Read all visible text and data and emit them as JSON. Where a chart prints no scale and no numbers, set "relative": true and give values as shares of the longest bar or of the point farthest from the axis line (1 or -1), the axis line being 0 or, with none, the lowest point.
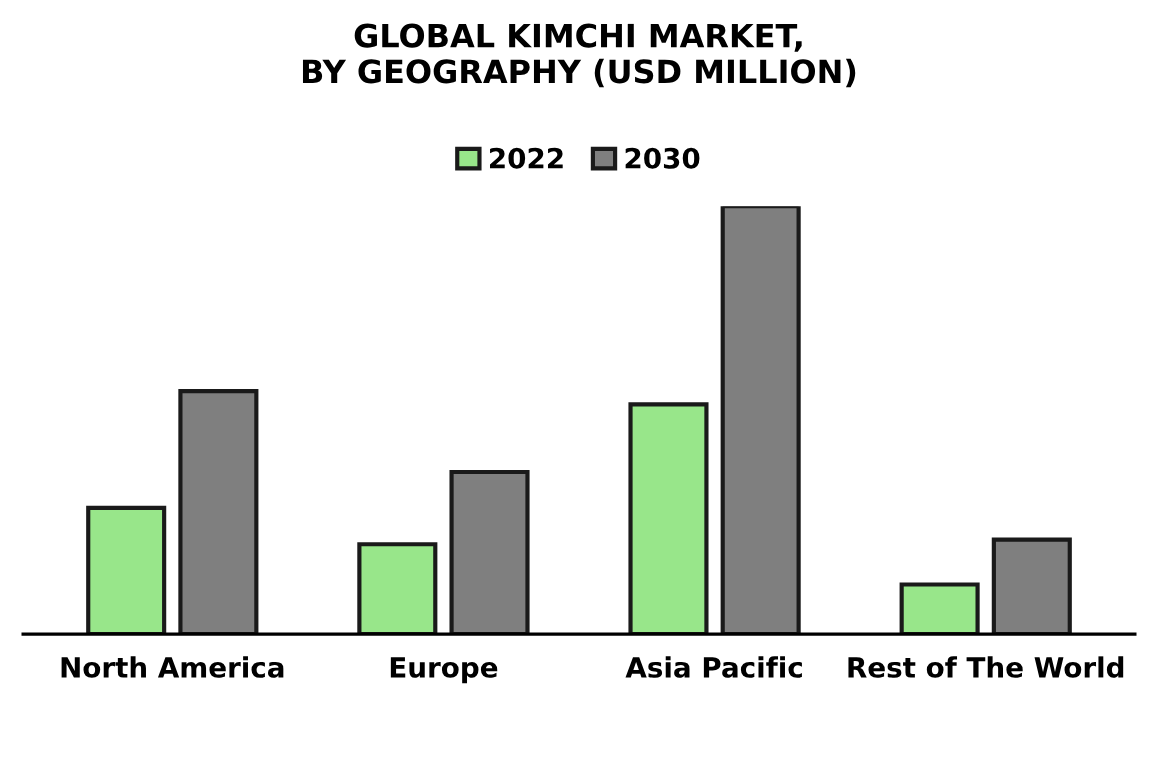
{
  "chart_data": {
    "type": "bar",
    "title": "GLOBAL KIMCHI MARKET,\nBY GEOGRAPHY (USD MILLION)",
    "categories": [
      "North America",
      "Europe",
      "Asia Pacific",
      "Rest of The World"
    ],
    "series": [
      {
        "name": "2022",
        "color": "#98e68a",
        "values": [
          0.295,
          0.21,
          0.537,
          0.116
        ]
      },
      {
        "name": "2030",
        "color": "#7f7f7f",
        "values": [
          0.568,
          0.379,
          1,
          0.221
        ]
      }
    ],
    "relative": true,
    "legend": "top",
    "grid": false
  }
}
